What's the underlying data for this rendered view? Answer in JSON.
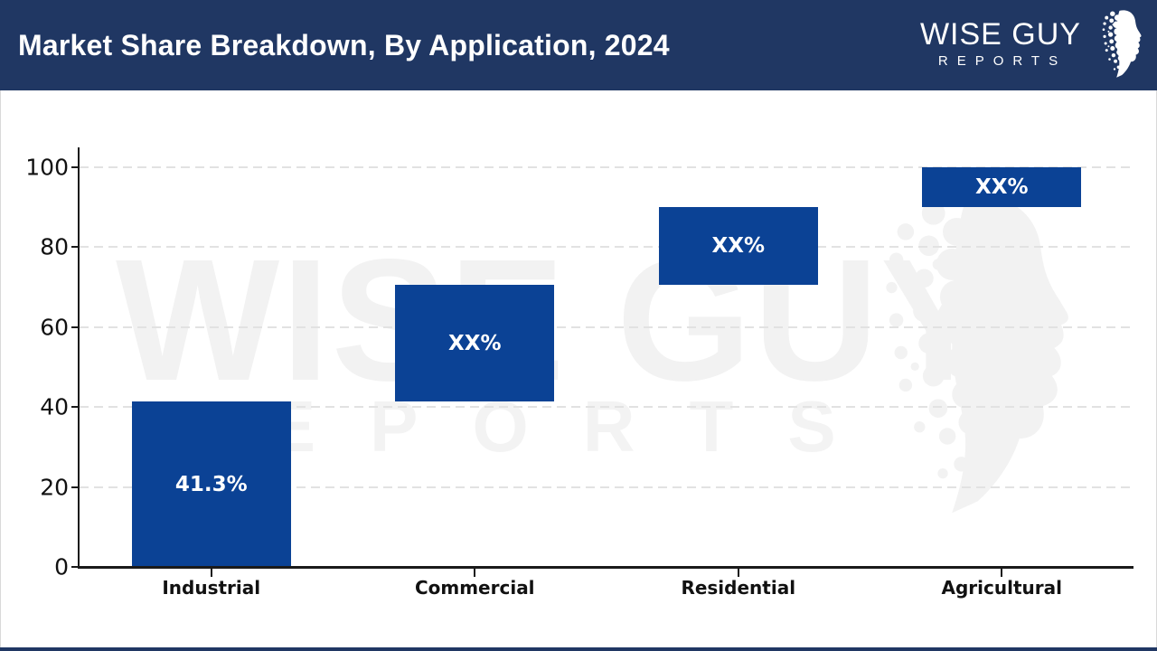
{
  "header": {
    "title": "Market Share Breakdown, By Application, 2024",
    "bg_color": "#203763",
    "logo": {
      "line1": "WISE GUY",
      "line2": "REPORTS"
    }
  },
  "watermark": {
    "line1": "WISE GUY",
    "line2": "REPORTS"
  },
  "chart_data": {
    "type": "bar",
    "subtype": "waterfall",
    "title": "Market Share Breakdown, By Application, 2024",
    "xlabel": "",
    "ylabel": "",
    "categories": [
      "Industrial",
      "Commercial",
      "Residential",
      "Agricultural"
    ],
    "segments": [
      {
        "category": "Industrial",
        "start": 0,
        "end": 41.3,
        "label": "41.3%"
      },
      {
        "category": "Commercial",
        "start": 41.3,
        "end": 70.5,
        "label": "XX%"
      },
      {
        "category": "Residential",
        "start": 70.5,
        "end": 90,
        "label": "XX%"
      },
      {
        "category": "Agricultural",
        "start": 90,
        "end": 100,
        "label": "XX%"
      }
    ],
    "yticks": [
      0,
      20,
      40,
      60,
      80,
      100
    ],
    "ylim": [
      0,
      105
    ],
    "grid": "horizontal-dashed",
    "legend": "none",
    "bar_color": "#0b4295",
    "bar_label_color": "#ffffff",
    "axis_color": "#1a1a1a",
    "gridline_color": "#e2e2e2"
  },
  "footer": {
    "bar_color": "#203763"
  }
}
